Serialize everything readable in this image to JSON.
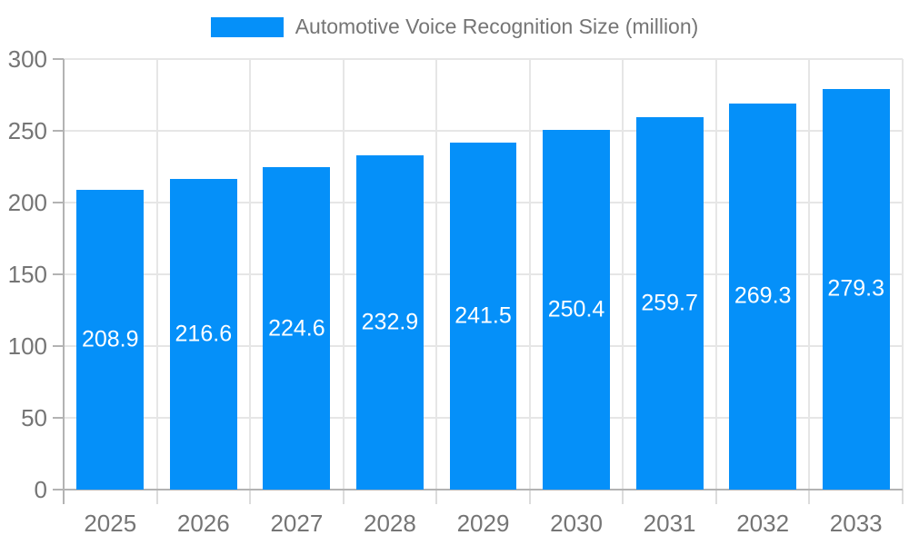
{
  "legend": {
    "label": "Automotive Voice Recognition Size (million)"
  },
  "chart_data": {
    "type": "bar",
    "title": "",
    "xlabel": "",
    "ylabel": "",
    "categories": [
      "2025",
      "2026",
      "2027",
      "2028",
      "2029",
      "2030",
      "2031",
      "2032",
      "2033"
    ],
    "series": [
      {
        "name": "Automotive Voice Recognition Size (million)",
        "values": [
          208.9,
          216.6,
          224.6,
          232.9,
          241.5,
          250.4,
          259.7,
          269.3,
          279.3
        ]
      }
    ],
    "data_labels": [
      "208.9",
      "216.6",
      "224.6",
      "232.9",
      "241.5",
      "250.4",
      "259.7",
      "269.3",
      "279.3"
    ],
    "ylim": [
      0,
      300
    ],
    "yticks": [
      0,
      50,
      100,
      150,
      200,
      250,
      300
    ],
    "grid": true,
    "legend_position": "top",
    "colors": {
      "bar": "#0590f9",
      "bar_label": "#ffffff",
      "axis_text": "#757575",
      "grid_line": "#e6e6e6",
      "axis_line": "#b3b3b3",
      "boundary_tick": "#dcdcdc"
    }
  }
}
